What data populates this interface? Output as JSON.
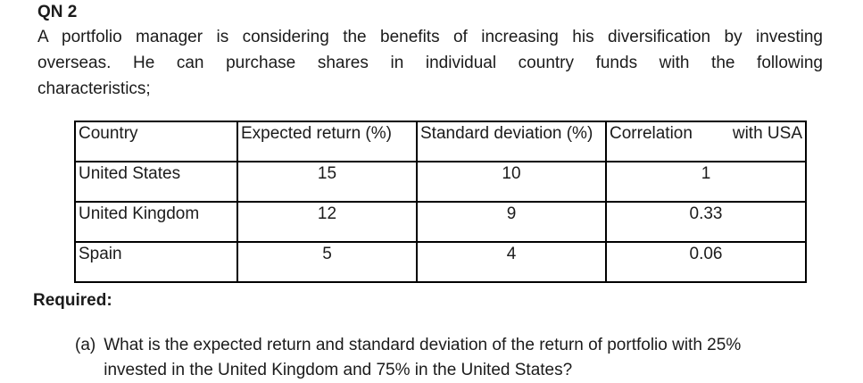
{
  "page": {
    "title": "QN 2",
    "intro_lines": [
      "A portfolio manager is considering the benefits of increasing his diversification by investing",
      "overseas. He can purchase shares in individual country funds with the following",
      "characteristics;"
    ],
    "required_label": "Required:",
    "question": {
      "marker": "(a)",
      "lines": [
        "What is the expected return and standard deviation of the return of portfolio with 25%",
        "invested in the United Kingdom and 75% in the United States?"
      ]
    }
  },
  "table": {
    "headers": {
      "country": "Country",
      "expected_return": "Expected return (%)",
      "std_dev": "Standard deviation (%)",
      "correlation_left": "Correlation",
      "correlation_right": "with USA"
    },
    "rows": [
      {
        "country": "United States",
        "expected_return": "15",
        "std_dev": "10",
        "correlation": "1"
      },
      {
        "country": "United Kingdom",
        "expected_return": "12",
        "std_dev": "9",
        "correlation": "0.33"
      },
      {
        "country": "Spain",
        "expected_return": "5",
        "std_dev": "4",
        "correlation": "0.06"
      }
    ]
  }
}
